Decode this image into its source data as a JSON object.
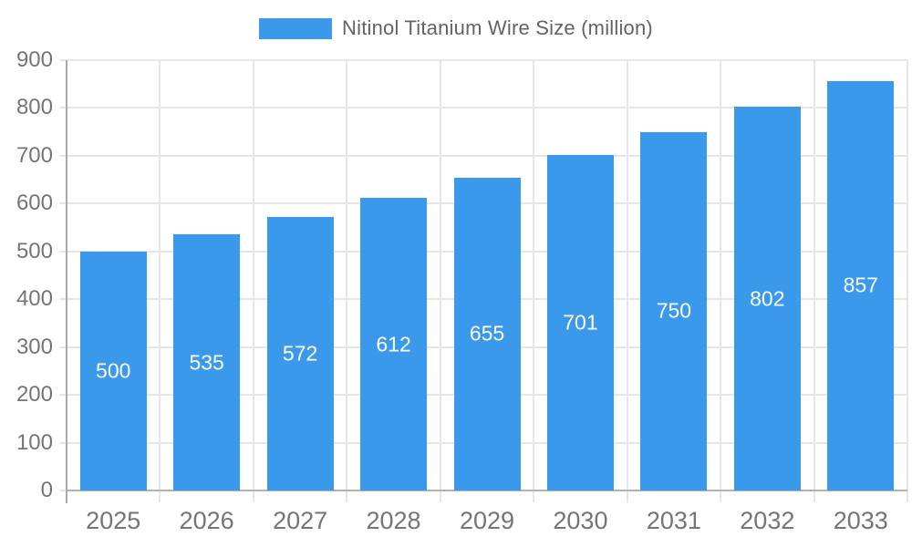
{
  "chart_data": {
    "type": "bar",
    "title": "",
    "legend": {
      "position": "top-center",
      "entries": [
        {
          "label": "Nitinol Titanium Wire Size (million)",
          "color": "#3B99EC"
        }
      ]
    },
    "categories": [
      "2025",
      "2026",
      "2027",
      "2028",
      "2029",
      "2030",
      "2031",
      "2032",
      "2033"
    ],
    "series": [
      {
        "name": "Nitinol Titanium Wire Size (million)",
        "values": [
          500,
          535,
          572,
          612,
          655,
          701,
          750,
          802,
          857
        ]
      }
    ],
    "values": [
      500,
      535,
      572,
      612,
      655,
      701,
      750,
      802,
      857
    ],
    "data_labels": [
      "500",
      "535",
      "572",
      "612",
      "655",
      "701",
      "750",
      "802",
      "857"
    ],
    "xlabel": "",
    "ylabel": "",
    "ylim": [
      0,
      900
    ],
    "yticks": [
      0,
      100,
      200,
      300,
      400,
      500,
      600,
      700,
      800,
      900
    ],
    "grid": true,
    "value_labels_inside_bars": true
  },
  "colors": {
    "bar": "#3B99EC",
    "gridline": "#e6e6e6",
    "axis_line": "#b0b0b0",
    "axis_label": "#757575",
    "legend_text": "#636363",
    "value_label": "#ffffff",
    "background": "#ffffff"
  }
}
